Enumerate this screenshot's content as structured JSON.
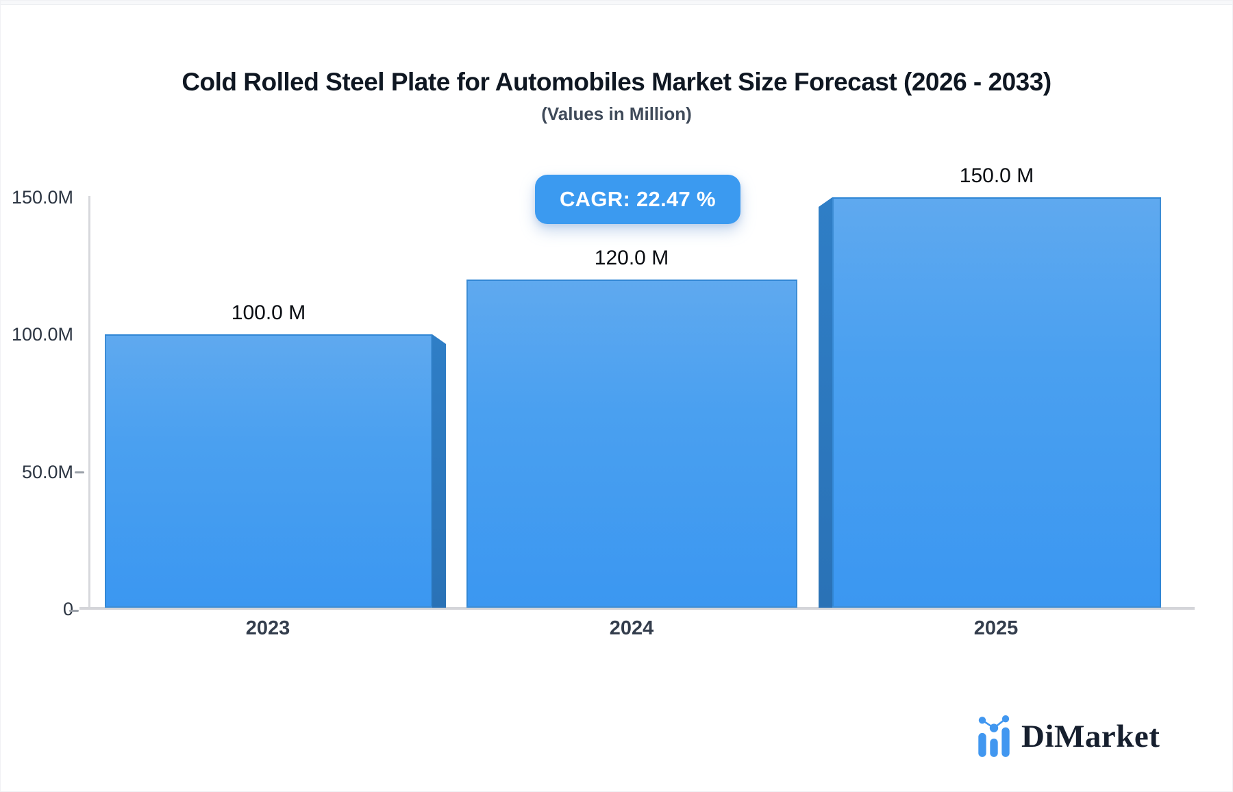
{
  "header": {
    "title": "Cold Rolled Steel Plate for Automobiles Market Size Forecast (2026 - 2033)",
    "subtitle": "(Values in Million)"
  },
  "badge": {
    "label": "CAGR: 22.47 %",
    "background": "#3B9AF0",
    "text_color": "#FFFFFF"
  },
  "chart_data": {
    "type": "bar",
    "title": "Cold Rolled Steel Plate for Automobiles Market Size Forecast (2026 - 2033)",
    "subtitle": "(Values in Million)",
    "categories": [
      "2023",
      "2024",
      "2025"
    ],
    "values": [
      100,
      120,
      150
    ],
    "value_labels": [
      "100.0 M",
      "120.0 M",
      "150.0 M"
    ],
    "unit": "Million",
    "cagr_percent": 22.47,
    "xlabel": "",
    "ylabel": "",
    "ylim": [
      0,
      150
    ],
    "yticks": [
      {
        "value": 150,
        "label": "150.0M"
      },
      {
        "value": 100,
        "label": "100.0M"
      },
      {
        "value": 50,
        "label": "50.0M"
      },
      {
        "value": 0,
        "label": "0"
      }
    ],
    "grid": false,
    "legend": false,
    "bar_style": "3d",
    "colors": {
      "bar_top": "#5FA9EF",
      "bar_bottom": "#3B97F1",
      "bar_side": "#2E78BC",
      "axis_line": "#D5D6DA"
    }
  },
  "branding": {
    "name": "DiMarket",
    "icon": "bar-chart-logo-icon",
    "icon_color": "#4197F0",
    "text_color": "#161F2E"
  }
}
